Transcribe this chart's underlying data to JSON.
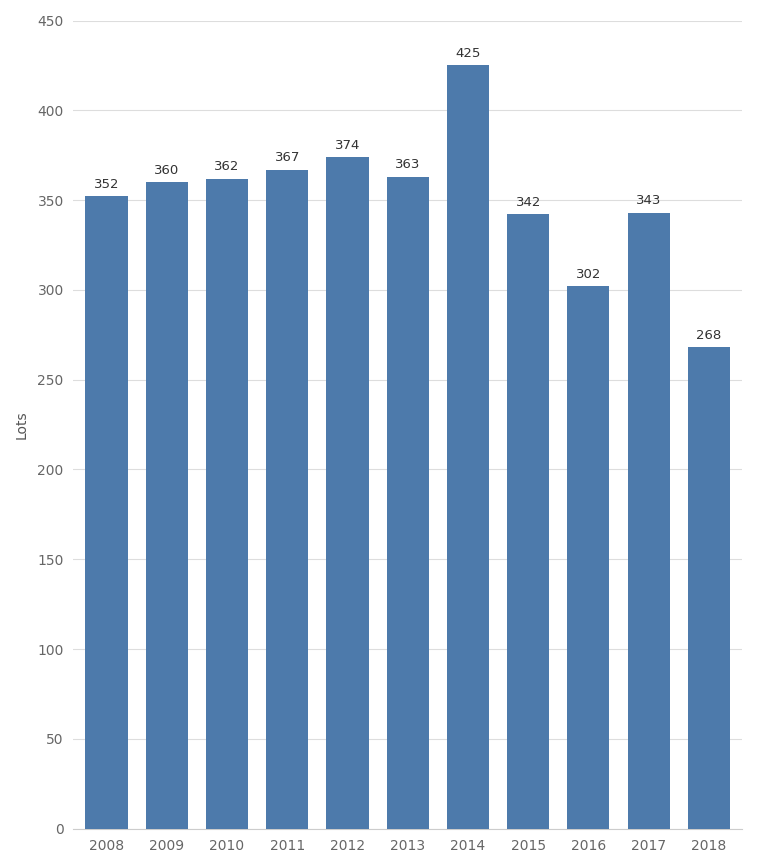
{
  "ylabel": "Lots",
  "years": [
    2008,
    2009,
    2010,
    2011,
    2012,
    2013,
    2014,
    2015,
    2016,
    2017,
    2018
  ],
  "values": [
    352,
    360,
    362,
    367,
    374,
    363,
    425,
    342,
    302,
    343,
    268
  ],
  "bar_color": "#4d7aab",
  "ylim": [
    0,
    450
  ],
  "yticks": [
    0,
    50,
    100,
    150,
    200,
    250,
    300,
    350,
    400,
    450
  ],
  "background_color": "#ffffff",
  "grid_color": "#dddddd",
  "title_fontsize": 13,
  "subtitle_fontsize": 11,
  "ylabel_fontsize": 10,
  "tick_fontsize": 10,
  "value_label_fontsize": 9.5,
  "bar_width": 0.7
}
